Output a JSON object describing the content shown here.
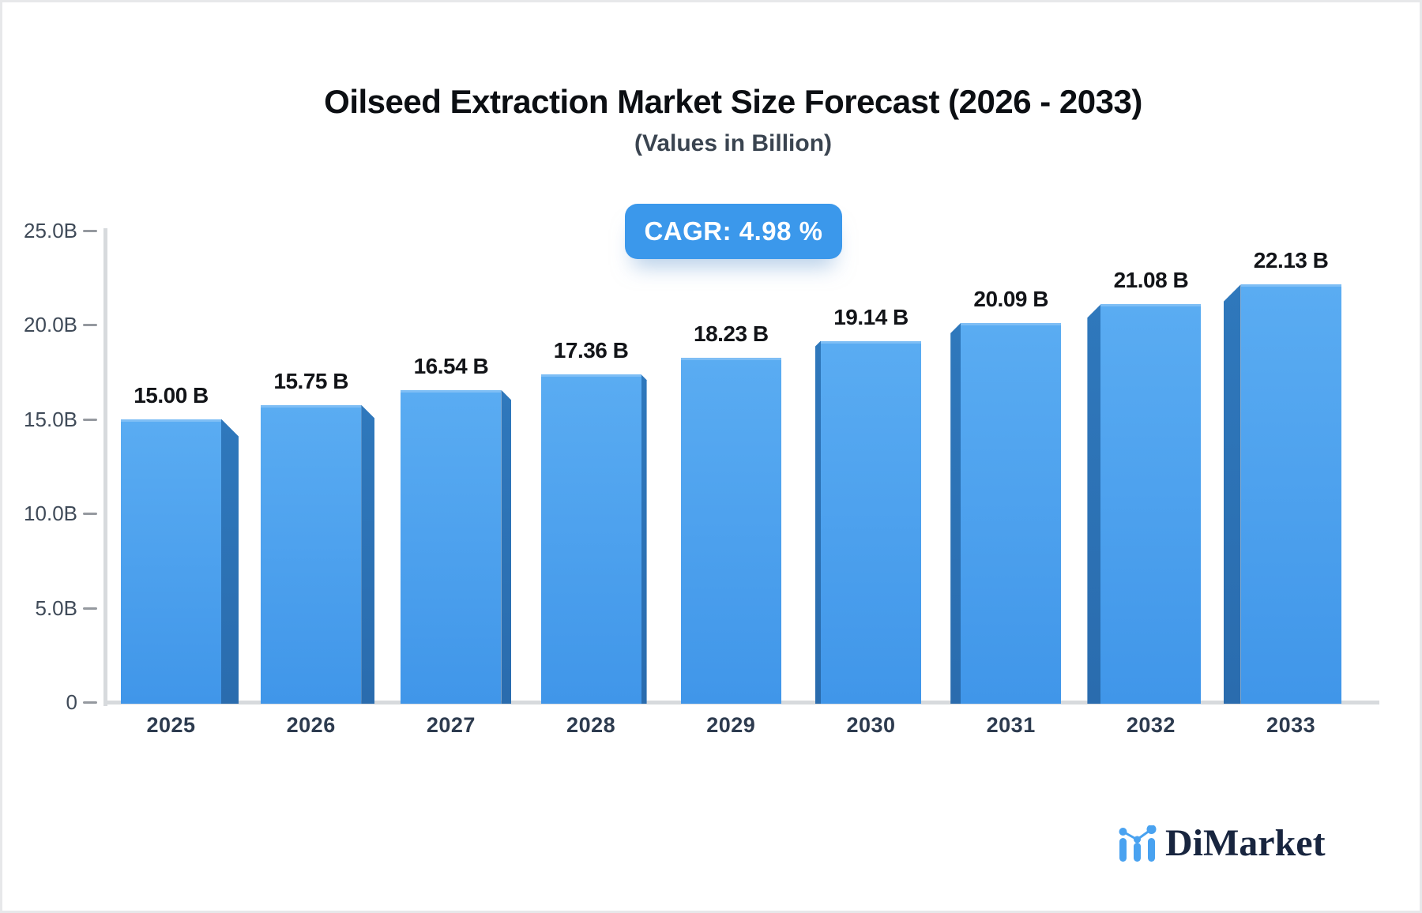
{
  "header": {
    "title": "Oilseed Extraction Market Size Forecast (2026 - 2033)",
    "subtitle": "(Values in Billion)"
  },
  "badge": {
    "label": "CAGR: 4.98 %",
    "bg_color": "#3b98eb",
    "text_color": "#ffffff"
  },
  "brand": {
    "name": "DiMarket",
    "icon": "mini-bar-chart-icon",
    "icon_color": "#49a2f0",
    "text_color": "#18253f"
  },
  "chart_data": {
    "type": "bar",
    "title": "Oilseed Extraction Market Size Forecast (2026 - 2033)",
    "subtitle": "(Values in Billion)",
    "categories": [
      "2025",
      "2026",
      "2027",
      "2028",
      "2029",
      "2030",
      "2031",
      "2032",
      "2033"
    ],
    "values": [
      15.0,
      15.75,
      16.54,
      17.36,
      18.23,
      19.14,
      20.09,
      21.08,
      22.13
    ],
    "value_labels": [
      "15.00 B",
      "15.75 B",
      "16.54 B",
      "17.36 B",
      "18.23 B",
      "19.14 B",
      "20.09 B",
      "21.08 B",
      "22.13 B"
    ],
    "unit": "Billion",
    "xlabel": "",
    "ylabel": "",
    "ylim": [
      0,
      25
    ],
    "yticks": [
      {
        "value": 25,
        "label": "25.0B"
      },
      {
        "value": 20,
        "label": "20.0B"
      },
      {
        "value": 15,
        "label": "15.0B"
      },
      {
        "value": 10,
        "label": "10.0B"
      },
      {
        "value": 5,
        "label": "5.0B"
      },
      {
        "value": 0,
        "label": "0"
      }
    ],
    "grid": false,
    "legend": "none",
    "bar_style": "3d-perspective-center-vanishing",
    "colors": {
      "bar_face_top": "#5aacf2",
      "bar_face_bottom": "#4096e9",
      "bar_side_top": "#2f78bc",
      "bar_side_bottom": "#2a6cae",
      "axis": "#d7dadd",
      "tick": "#95999f",
      "ytick_text": "#3f4a58",
      "xtick_text": "#2d3b4f",
      "value_text": "#121418"
    }
  }
}
